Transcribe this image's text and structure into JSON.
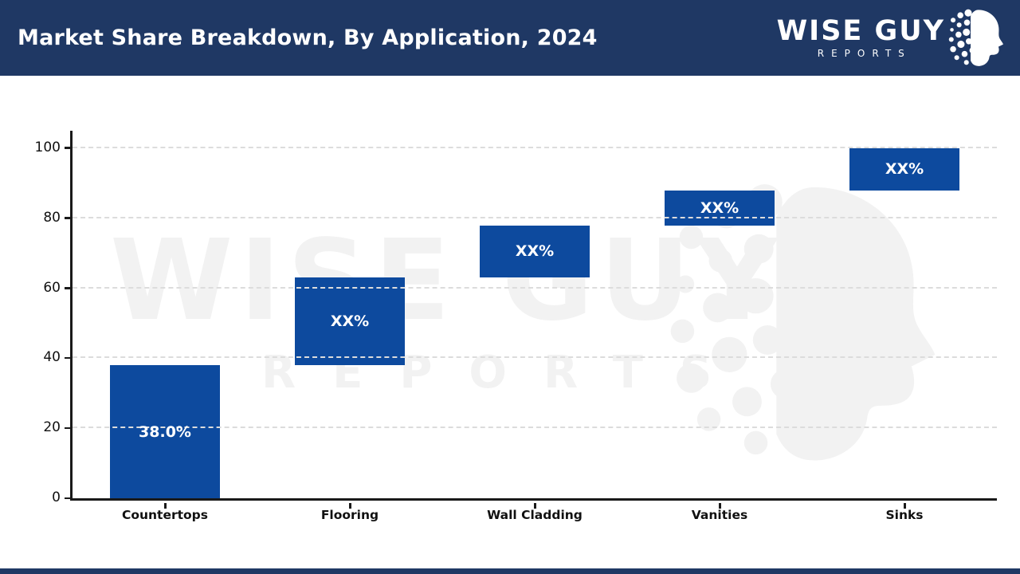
{
  "header": {
    "title": "Market Share Breakdown, By Application, 2024",
    "logo_line1": "WISE GUY",
    "logo_line2": "REPORTS"
  },
  "watermark": {
    "line1": "WISE GUY",
    "line2": "REPORTS"
  },
  "colors": {
    "header_navy": "#1f3864",
    "bar_blue": "#0d4a9e",
    "gridline": "#dcdcdc",
    "watermark_gray": "#f2f2f2"
  },
  "chart_data": {
    "type": "bar",
    "subtype": "floating-segment-waterfall",
    "title": "Market Share Breakdown, By Application, 2024",
    "categories": [
      "Countertops",
      "Flooring",
      "Wall Cladding",
      "Vanities",
      "Sinks"
    ],
    "segments": [
      {
        "start": 0,
        "end": 38
      },
      {
        "start": 38,
        "end": 63
      },
      {
        "start": 63,
        "end": 78
      },
      {
        "start": 78,
        "end": 88
      },
      {
        "start": 88,
        "end": 100
      }
    ],
    "segment_sizes": [
      38,
      25,
      15,
      10,
      12
    ],
    "bar_labels": [
      "38.0%",
      "XX%",
      "XX%",
      "XX%",
      "XX%"
    ],
    "xlabel": "",
    "ylabel": "",
    "yticks": [
      0,
      20,
      40,
      60,
      80,
      100
    ],
    "ylim": [
      0,
      105
    ],
    "grid": "horizontal-dashed",
    "legend": "none",
    "bar_color": "#0d4a9e",
    "label_color": "#ffffff"
  }
}
